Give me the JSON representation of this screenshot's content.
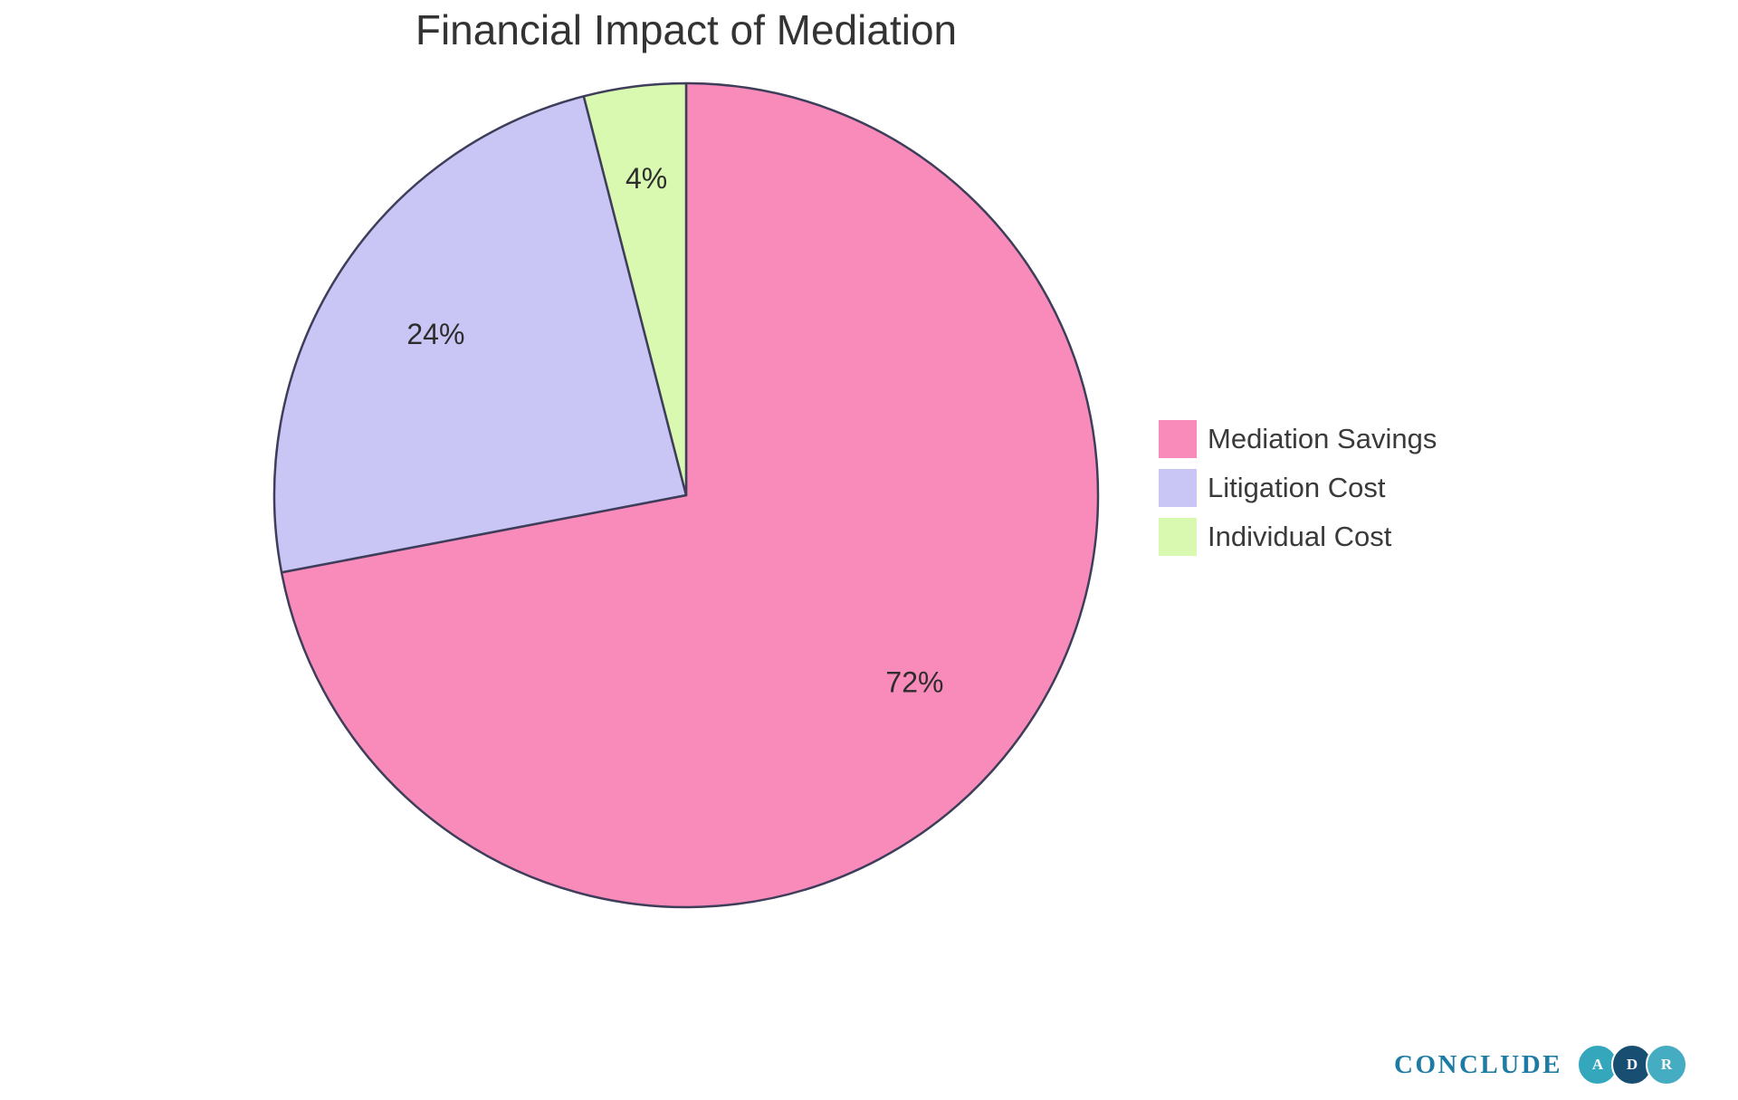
{
  "title": "Financial Impact of Mediation",
  "chart_data": {
    "type": "pie",
    "title": "Financial Impact of Mediation",
    "start_angle_deg": 0,
    "direction": "clockwise",
    "stroke_color": "#3E3E5A",
    "legend_position": "right",
    "slices": [
      {
        "label": "Mediation Savings",
        "value": 72,
        "pct_label": "72%",
        "color": "#F98BBB"
      },
      {
        "label": "Litigation Cost",
        "value": 24,
        "pct_label": "24%",
        "color": "#C9C5F4"
      },
      {
        "label": "Individual Cost",
        "value": 4,
        "pct_label": "4%",
        "color": "#D9F8B0"
      }
    ]
  },
  "branding": {
    "wordmark": "CONCLUDE",
    "wordmark_color": "#1E7BA4",
    "badges": [
      {
        "letter": "A",
        "color": "#35A7BD"
      },
      {
        "letter": "D",
        "color": "#174E72"
      },
      {
        "letter": "R",
        "color": "#45ACC2"
      }
    ]
  }
}
